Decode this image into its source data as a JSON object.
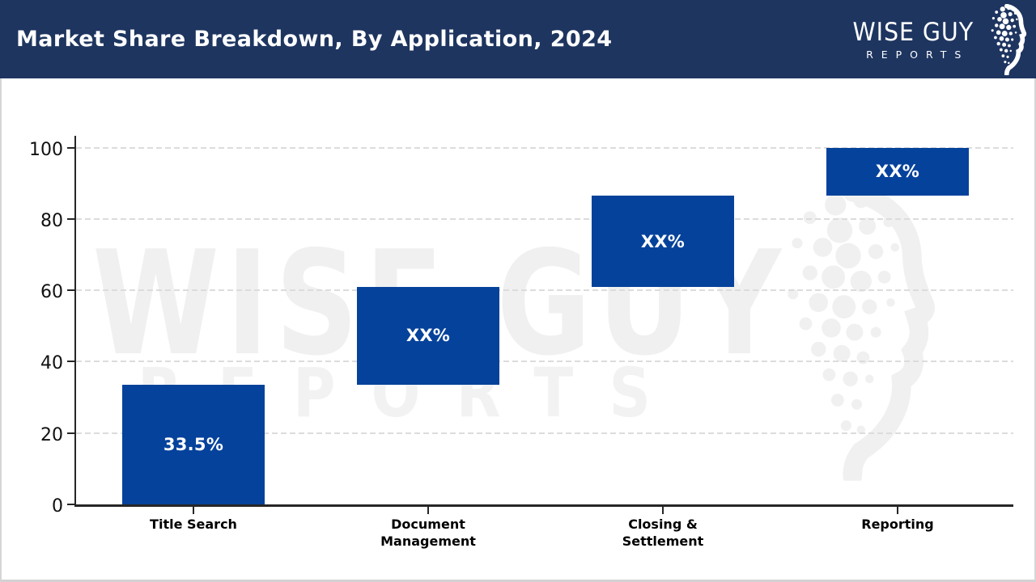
{
  "header": {
    "title": "Market Share Breakdown, By Application, 2024",
    "brand": {
      "line1": "WISE GUY",
      "line2": "REPORTS"
    },
    "colors": {
      "background": "#1e3560",
      "text": "#ffffff"
    }
  },
  "watermark": {
    "line1": "WISE GUY",
    "line2": "REPORTS"
  },
  "chart_data": {
    "type": "bar",
    "subtype": "waterfall",
    "title": "Market Share Breakdown, By Application, 2024",
    "categories": [
      "Title Search",
      "Document Management",
      "Closing & Settlement",
      "Reporting"
    ],
    "segments": [
      {
        "category": "Title Search",
        "start": 0,
        "end": 33.5,
        "label": "33.5%"
      },
      {
        "category": "Document Management",
        "start": 33.5,
        "end": 61,
        "label": "XX%"
      },
      {
        "category": "Closing & Settlement",
        "start": 61,
        "end": 86.5,
        "label": "XX%"
      },
      {
        "category": "Reporting",
        "start": 86.5,
        "end": 100,
        "label": "XX%"
      }
    ],
    "yticks": [
      0,
      20,
      40,
      60,
      80,
      100
    ],
    "ylim": [
      0,
      104
    ],
    "xlabel": "",
    "ylabel": "",
    "grid": "horizontal-dashed",
    "legend": "none",
    "bar_color": "#05429b",
    "gridline_color": "#dcdcdc",
    "axis_color": "#262626",
    "value_label_color": "#ffffff"
  }
}
